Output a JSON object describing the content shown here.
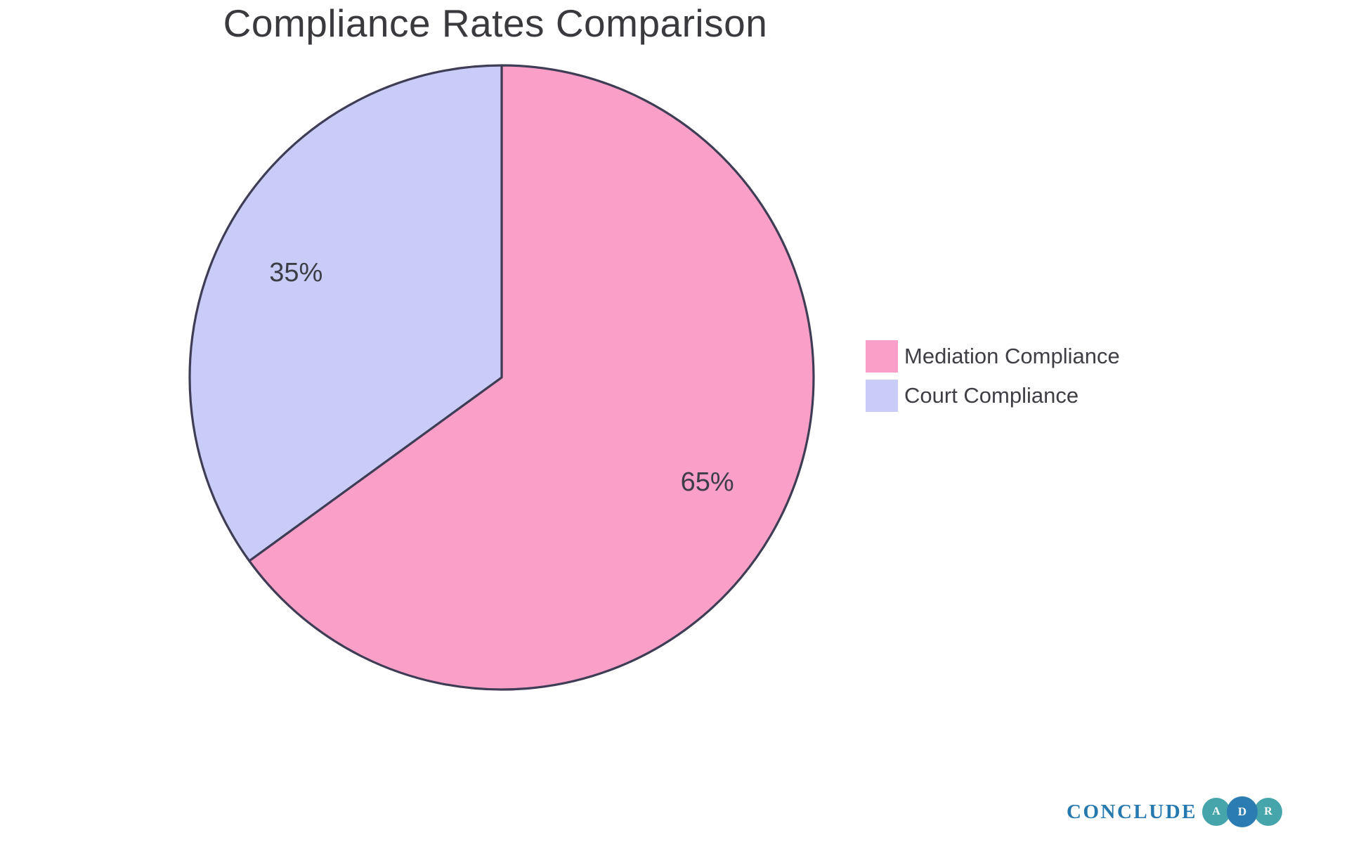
{
  "chart_data": {
    "type": "pie",
    "title": "Compliance Rates Comparison",
    "start_angle": "top",
    "direction": "clockwise",
    "legend_position": "right",
    "stroke_color": "#3f3d56",
    "stroke_width": 3.2,
    "label_color": "#3d3d46",
    "label_font_size": 38,
    "slices": [
      {
        "label": "Mediation Compliance",
        "value": 65,
        "display": "65%",
        "color": "#faa0c8"
      },
      {
        "label": "Court Compliance",
        "value": 35,
        "display": "35%",
        "color": "#c9ccf6"
      }
    ]
  },
  "branding": {
    "wordmark": "CONCLUDE",
    "wordmark_color": "#2679af",
    "letter_color": "#ffffff",
    "badges": [
      {
        "letter": "A",
        "color": "#46a5ab"
      },
      {
        "letter": "D",
        "color": "#2b7cb0"
      },
      {
        "letter": "R",
        "color": "#46a5ab"
      }
    ]
  }
}
